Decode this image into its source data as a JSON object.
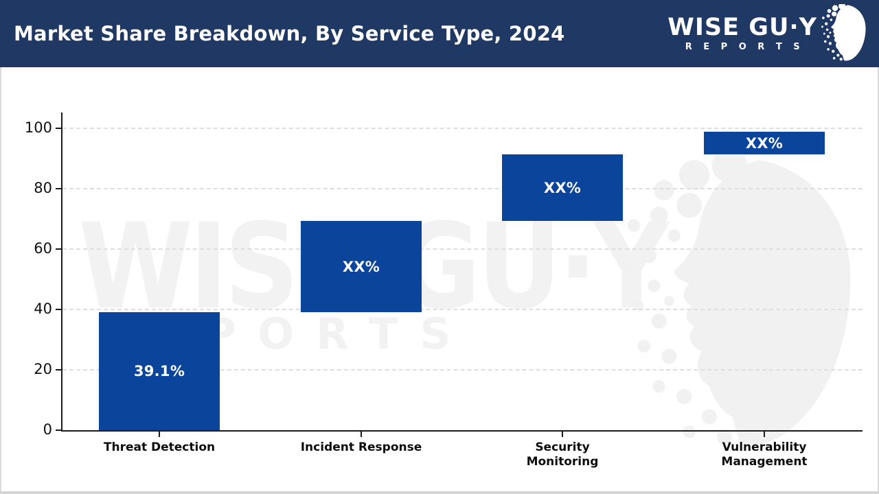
{
  "header": {
    "title": "Market Share Breakdown, By Service Type, 2024",
    "logo": {
      "line1": "WISE GU·Y",
      "line2": "R E P O R T S",
      "head_icon": "dotted-face-profile"
    }
  },
  "watermark": {
    "line1": "WISE GU·Y",
    "line2": "REPORTS"
  },
  "colors": {
    "header_bg": "#1f3864",
    "bar": "#0b459b",
    "bar_label_text": "#ffffff",
    "axis": "#1a1a1a",
    "grid": "#dedede",
    "watermark": "#f2f2f2",
    "page_border": "#d9d9d9"
  },
  "chart_data": {
    "type": "bar",
    "subtype": "waterfall",
    "title": "Market Share Breakdown, By Service Type, 2024",
    "categories": [
      "Threat Detection",
      "Incident Response",
      "Security\nMonitoring",
      "Vulnerability\nManagement"
    ],
    "segments": [
      {
        "category": "Threat Detection",
        "start": 0,
        "end": 39.1,
        "label": "39.1%"
      },
      {
        "category": "Incident Response",
        "start": 39.1,
        "end": 69.3,
        "label": "XX%"
      },
      {
        "category": "Security Monitoring",
        "start": 69.3,
        "end": 91.3,
        "label": "XX%"
      },
      {
        "category": "Vulnerability Management",
        "start": 91.3,
        "end": 98.9,
        "label": "XX%"
      }
    ],
    "yticks": [
      0,
      20,
      40,
      60,
      80,
      100
    ],
    "ylim": [
      0,
      105
    ],
    "xlabel": "",
    "ylabel": "",
    "grid": "horizontal-dashed",
    "legend": "none"
  }
}
